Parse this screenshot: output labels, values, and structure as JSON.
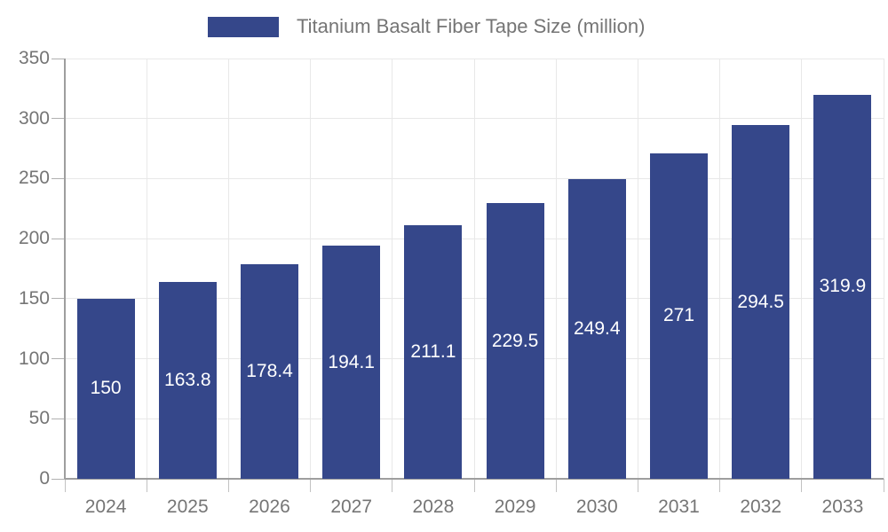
{
  "page": {
    "background_color": "#ffffff"
  },
  "legend": {
    "label": "Titanium Basalt Fiber Tape Size (million)",
    "swatch_color": "#35478A",
    "position": "top"
  },
  "chart_data": {
    "type": "bar",
    "title": "Titanium Basalt Fiber Tape Size (million)",
    "categories": [
      "2024",
      "2025",
      "2026",
      "2027",
      "2028",
      "2029",
      "2030",
      "2031",
      "2032",
      "2033"
    ],
    "values": [
      150,
      163.8,
      178.4,
      194.1,
      211.1,
      229.5,
      249.4,
      271,
      294.5,
      319.9
    ],
    "value_labels": [
      "150",
      "163.8",
      "178.4",
      "194.1",
      "211.1",
      "229.5",
      "249.4",
      "271",
      "294.5",
      "319.9"
    ],
    "xlabel": "",
    "ylabel": "",
    "ylim": [
      0,
      350
    ],
    "yticks": [
      0,
      50,
      100,
      150,
      200,
      250,
      300,
      350
    ],
    "grid": true,
    "legend_position": "top",
    "bar_color": "#35478A",
    "value_label_color": "#ffffff",
    "axis_text_color": "#757575",
    "axis_line_color": "#9e9e9e",
    "grid_color": "#e8e8e8"
  }
}
